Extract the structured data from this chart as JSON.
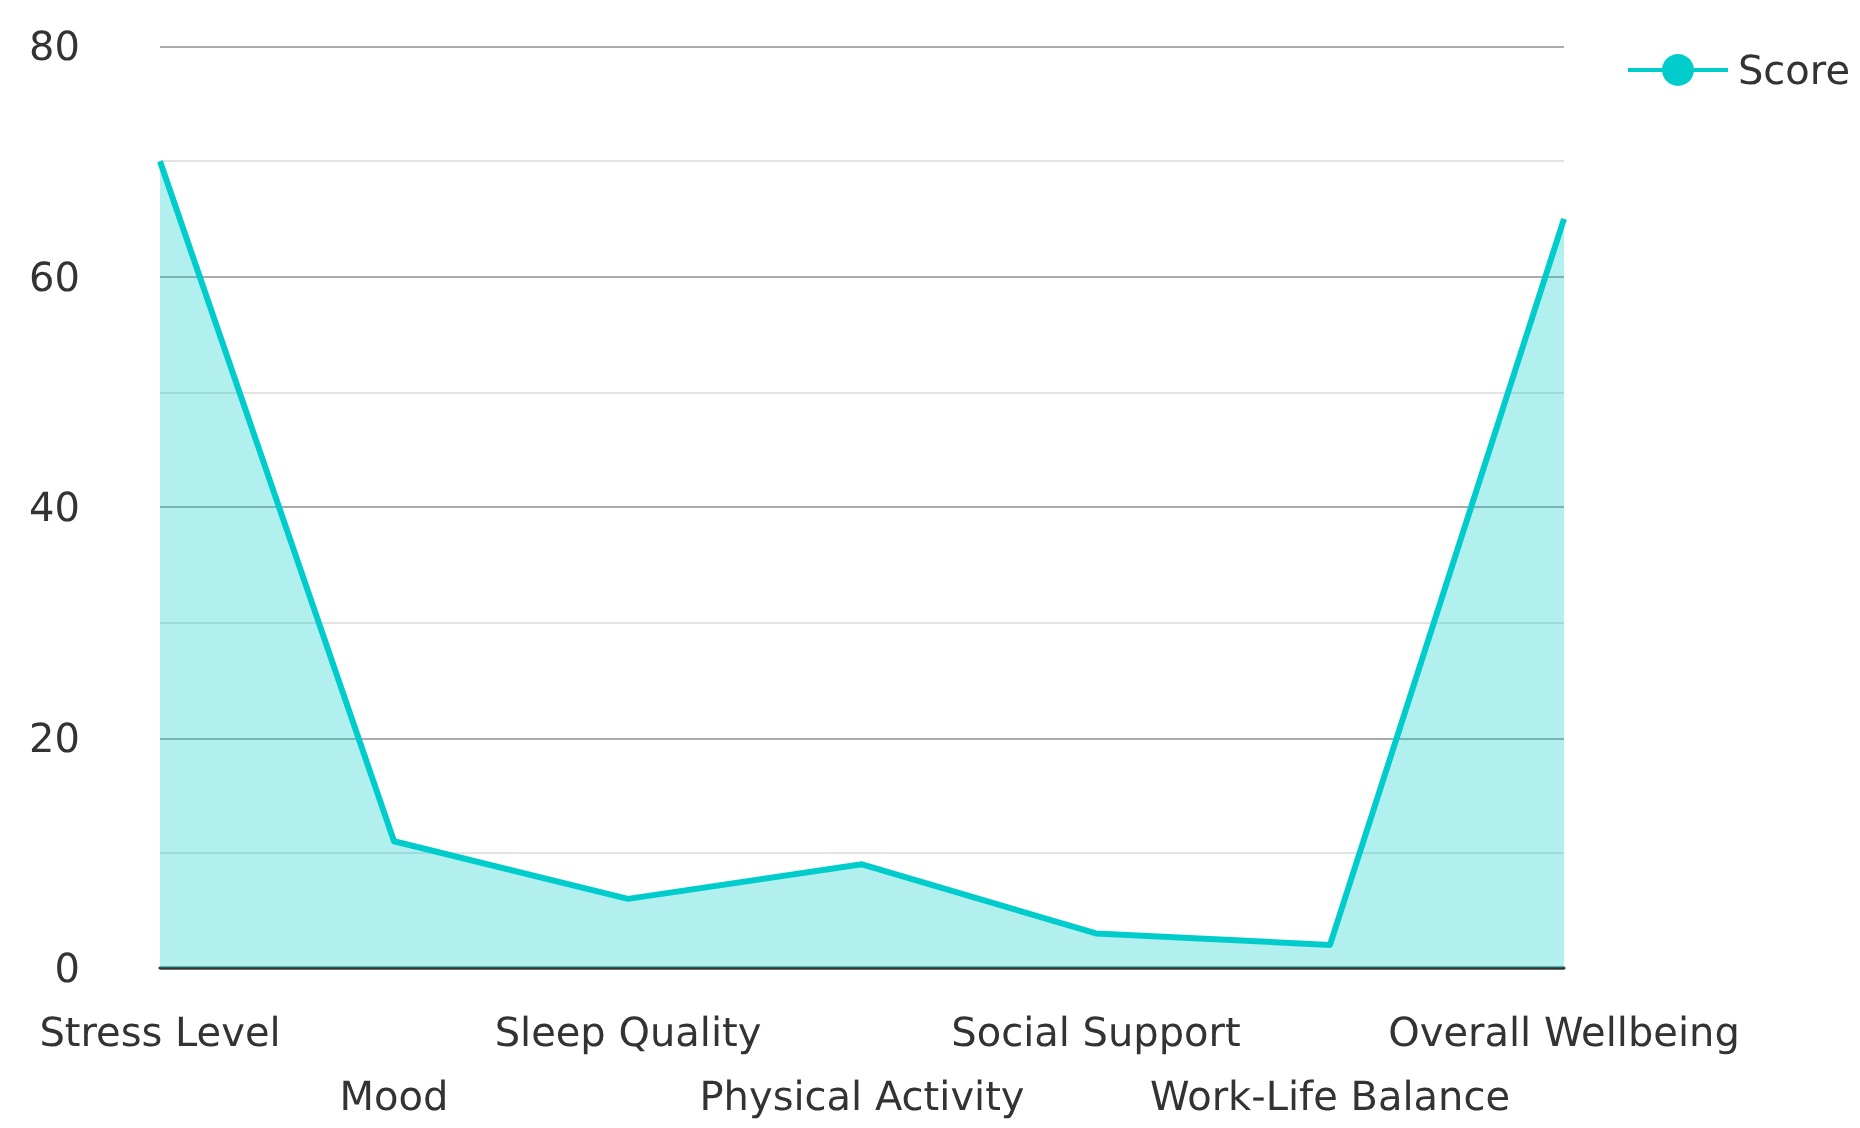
{
  "chart_data": {
    "type": "area",
    "categories": [
      "Stress Level",
      "Mood",
      "Sleep Quality",
      "Physical Activity",
      "Social Support",
      "Work-Life Balance",
      "Overall Wellbeing"
    ],
    "series": [
      {
        "name": "Score",
        "color": "#00cccc",
        "values": [
          70,
          11,
          6,
          9,
          3,
          2,
          65
        ]
      }
    ],
    "ylim": [
      0,
      80
    ],
    "yticks": [
      0,
      {
        "value": 10,
        "label": null
      },
      20,
      {
        "value": 30,
        "label": null
      },
      40,
      {
        "value": 50,
        "label": null
      },
      60,
      {
        "value": 70,
        "label": null
      },
      80
    ],
    "grid": "y",
    "legend": "top right",
    "marker": "none"
  }
}
